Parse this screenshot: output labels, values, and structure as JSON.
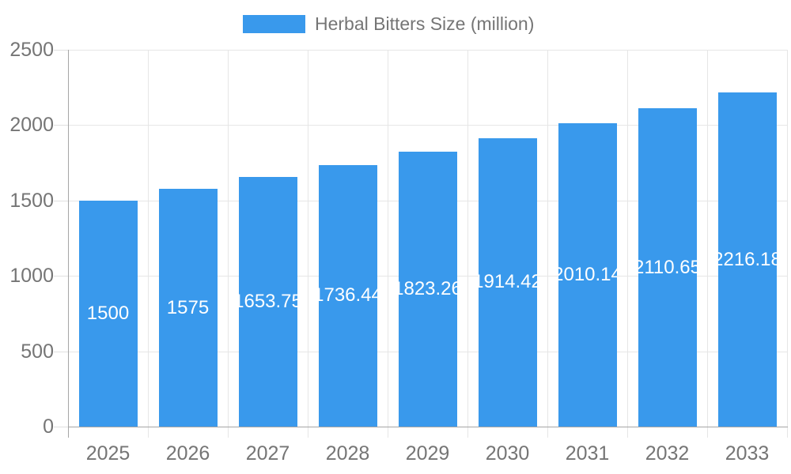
{
  "chart_data": {
    "type": "bar",
    "title": "Herbal Bitters Size (million)",
    "legend": {
      "label": "Herbal Bitters Size (million)",
      "position": "top-center"
    },
    "categories": [
      "2025",
      "2026",
      "2027",
      "2028",
      "2029",
      "2030",
      "2031",
      "2032",
      "2033"
    ],
    "series": [
      {
        "name": "Herbal Bitters Size (million)",
        "values": [
          1500,
          1575,
          1653.75,
          1736.44,
          1823.26,
          1914.42,
          2010.14,
          2110.65,
          2216.18
        ],
        "value_labels": [
          "1500",
          "1575",
          "1653.75",
          "1736.44",
          "1823.26",
          "1914.42",
          "2010.14",
          "2110.65",
          "2216.18"
        ]
      }
    ],
    "xlabel": "",
    "ylabel": "",
    "ylim": [
      0,
      2500
    ],
    "yticks": [
      0,
      500,
      1000,
      1500,
      2000,
      2500
    ],
    "grid": true,
    "value_labels_shown": true,
    "colors": {
      "bar": "#3999EC",
      "value_label_text": "#FFFFFF",
      "axis_text": "#757575",
      "gridline": "#E6E6E6",
      "tick_mark": "#E0E0E0",
      "axis_line": "#A6A6A6",
      "background": "#FFFFFF"
    }
  }
}
